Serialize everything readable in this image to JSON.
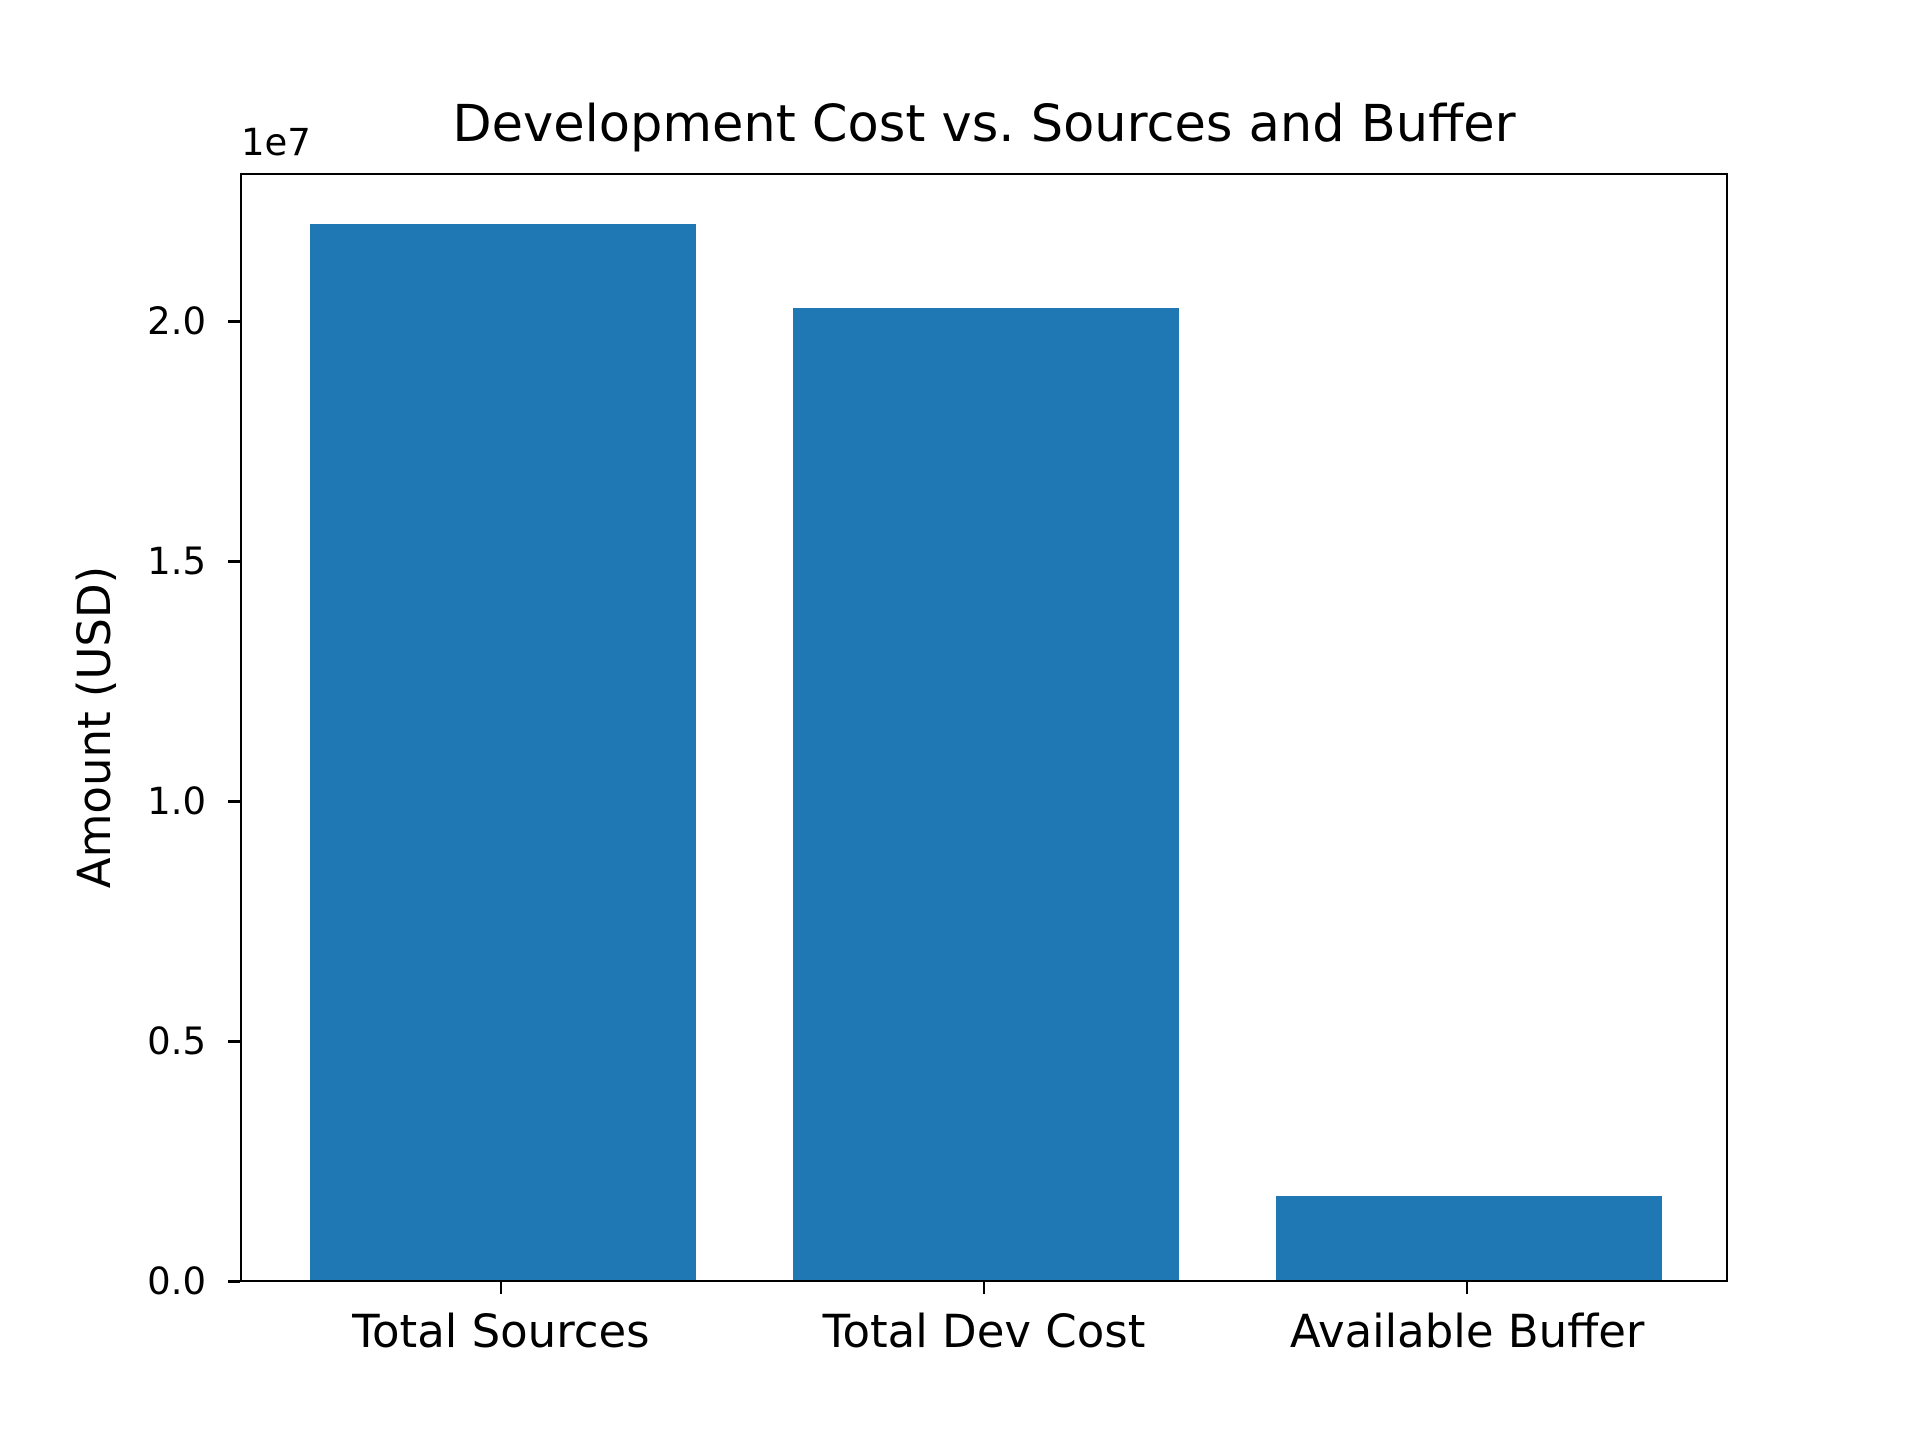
{
  "figure": {
    "title": "Development Cost vs. Sources and Buffer",
    "y_axis_label": "Amount (USD)",
    "y_offset_text": "1e7"
  },
  "chart_data": {
    "type": "bar",
    "title": "Development Cost vs. Sources and Buffer",
    "xlabel": "",
    "ylabel": "Amount (USD)",
    "categories": [
      "Total Sources",
      "Total Dev Cost",
      "Available Buffer"
    ],
    "values": [
      22000000,
      20250000,
      1750000
    ],
    "bar_color": "#1f77b4",
    "ylim": [
      0,
      23100000
    ],
    "yticks": [
      0,
      5000000,
      10000000,
      15000000,
      20000000
    ],
    "ytick_labels": [
      "0.0",
      "0.5",
      "1.0",
      "1.5",
      "2.0"
    ],
    "y_offset_text": "1e7",
    "grid": false,
    "legend_position": "none",
    "axis_color": "#000000",
    "background_color": "#ffffff"
  }
}
